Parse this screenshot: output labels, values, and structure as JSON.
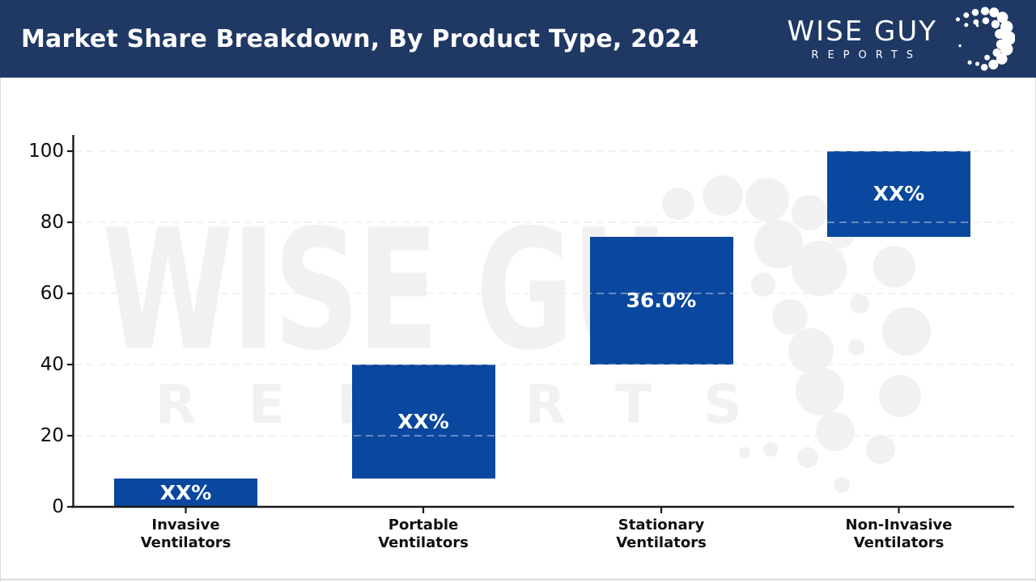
{
  "colors": {
    "header_bg": "#1F3864",
    "bar": "#0A479E",
    "grid": "#E2E2E2",
    "axis": "#1A1A1A",
    "watermark": "#F1F1F1"
  },
  "header": {
    "title": "Market Share Breakdown, By Product Type, 2024",
    "logo_line1": "WISE GUY",
    "logo_line2": "REPORTS"
  },
  "watermark": {
    "line1": "WISE GU",
    "line2": "REPORTS"
  },
  "chart_data": {
    "type": "bar",
    "subtype": "floating-segment-waterfall",
    "title": "Market Share Breakdown, By Product Type, 2024",
    "categories": [
      "Invasive\nVentilators",
      "Portable\nVentilators",
      "Stationary\nVentilators",
      "Non-Invasive\nVentilators"
    ],
    "segments": [
      {
        "category": "Invasive Ventilators",
        "start": 0,
        "end": 8,
        "label": "XX%"
      },
      {
        "category": "Portable Ventilators",
        "start": 8,
        "end": 40,
        "label": "XX%"
      },
      {
        "category": "Stationary Ventilators",
        "start": 40,
        "end": 76,
        "label": "36.0%"
      },
      {
        "category": "Non-Invasive Ventilators",
        "start": 76,
        "end": 100,
        "label": "XX%"
      }
    ],
    "ylim": [
      0,
      100
    ],
    "yticks": [
      0,
      20,
      40,
      60,
      80,
      100
    ],
    "xlabel": "",
    "ylabel": "",
    "grid": "horizontal dashed",
    "legend": "none"
  }
}
